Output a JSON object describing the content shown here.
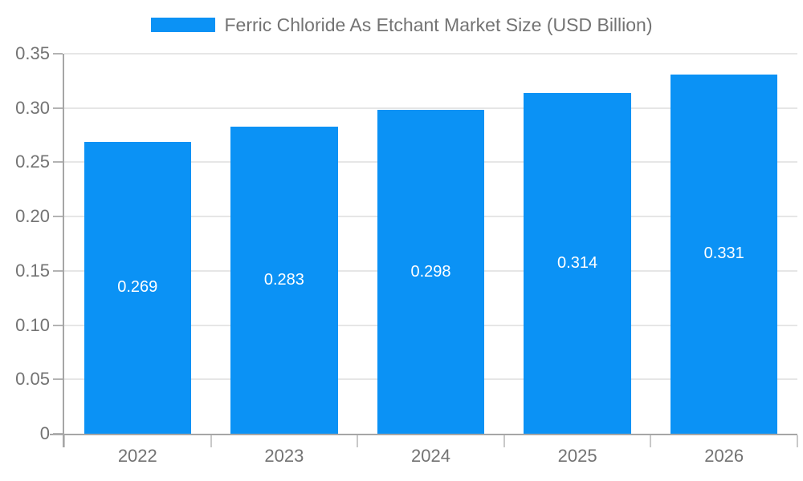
{
  "legend": {
    "label": "Ferric Chloride As Etchant Market Size (USD Billion)",
    "swatch_color": "#0b92f5"
  },
  "chart_data": {
    "type": "bar",
    "title": "Ferric Chloride As Etchant Market Size (USD Billion)",
    "categories": [
      "2022",
      "2023",
      "2024",
      "2025",
      "2026"
    ],
    "values": [
      0.269,
      0.283,
      0.298,
      0.314,
      0.331
    ],
    "value_labels": [
      "0.269",
      "0.283",
      "0.298",
      "0.314",
      "0.331"
    ],
    "xlabel": "",
    "ylabel": "",
    "ylim": [
      0,
      0.35
    ],
    "yticks": [
      0,
      0.05,
      0.1,
      0.15,
      0.2,
      0.25,
      0.3,
      0.35
    ],
    "ytick_labels": [
      "0",
      "0.05",
      "0.10",
      "0.15",
      "0.20",
      "0.25",
      "0.30",
      "0.35"
    ],
    "grid": true,
    "legend_position": "top",
    "bar_color": "#0b92f5",
    "value_label_color": "#ffffff",
    "bar_width_fraction": 0.73
  }
}
